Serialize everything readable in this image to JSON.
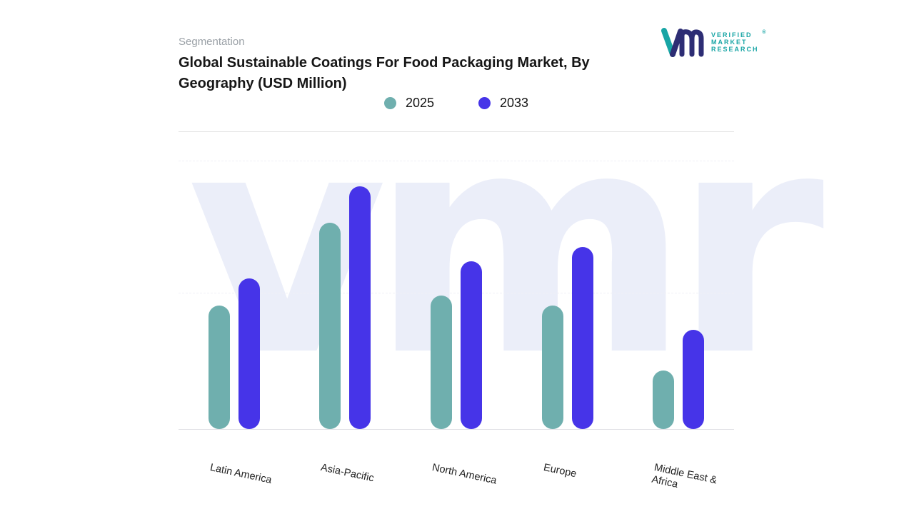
{
  "page": {
    "eyebrow": "Segmentation",
    "title_lines": [
      "Global Sustainable Coatings For Food Packaging Market, By",
      "Geography (USD Million)"
    ],
    "watermark": "vmr"
  },
  "logo": {
    "lines": [
      "VERIFIED",
      "MARKET",
      "RESEARCH"
    ],
    "registered_mark": "®",
    "text_color": "#18a5a5",
    "mark_teal": "#18a5a5",
    "mark_navy": "#2d2d74"
  },
  "chart_data": {
    "type": "bar",
    "title": "Global Sustainable Coatings For Food Packaging Market, By Geography (USD Million)",
    "categories": [
      "Latin America",
      "Asia-Pacific",
      "North America",
      "Europe",
      "Middle East & Africa"
    ],
    "series": [
      {
        "name": "2025",
        "color": "#6fafae",
        "values": [
          51,
          85,
          55,
          51,
          24
        ]
      },
      {
        "name": "2033",
        "color": "#4634e8",
        "values": [
          62,
          100,
          69,
          75,
          41
        ]
      }
    ],
    "xlabel": "",
    "ylabel": "",
    "ylim": [
      0,
      100
    ],
    "y_axis_tick_labels_visible": false,
    "note": "y-axis is unlabeled in the figure; values are relative estimates scaled to tallest bar = 100",
    "legend_position": "top-center",
    "grid": "faint horizontal dashed lines",
    "bar_style": "rounded pill bars, pairs per category"
  }
}
